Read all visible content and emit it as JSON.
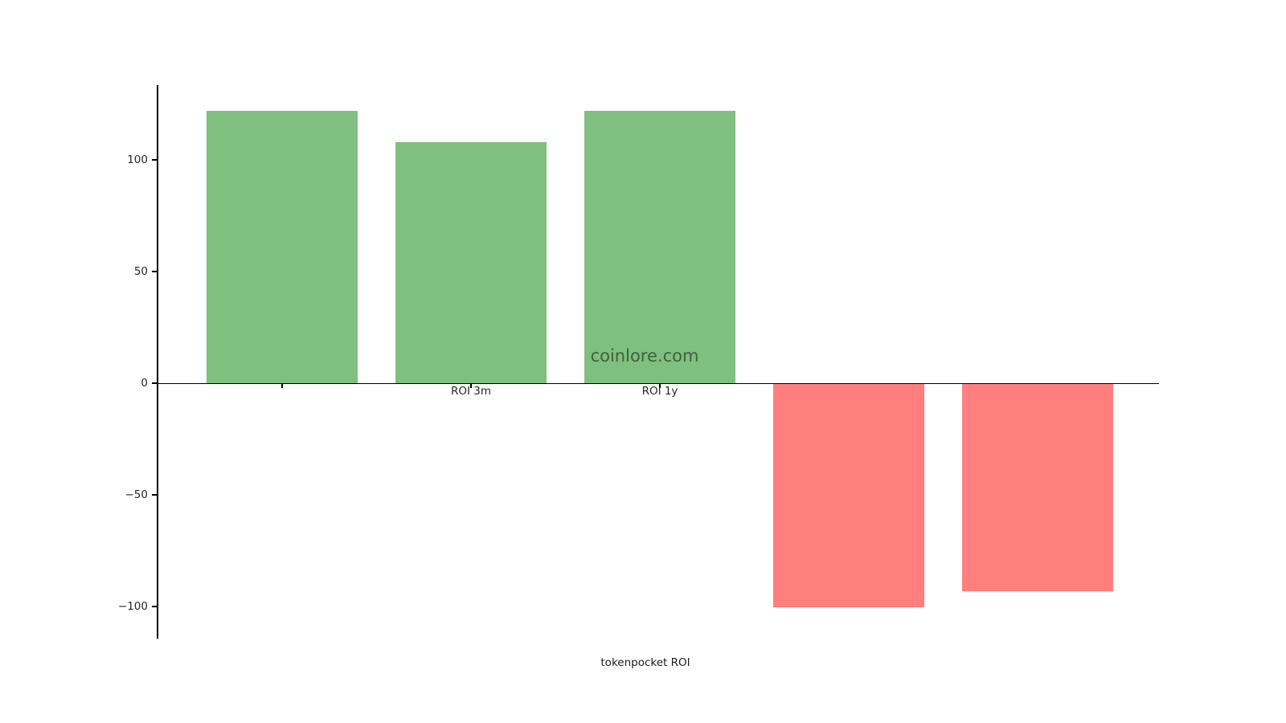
{
  "chart_data": {
    "type": "bar",
    "title": "",
    "categories": [
      "",
      "ROI 3m",
      "ROI 1y",
      "",
      ""
    ],
    "values": [
      122,
      108,
      122,
      -100,
      -93
    ],
    "xlabel": "tokenpocket ROI",
    "ylabel": "",
    "yticks": [
      100,
      50,
      0,
      -50,
      -100
    ],
    "ylim": [
      -115,
      133
    ],
    "grid": false,
    "legend": false,
    "positive_color": "#7fbf7f",
    "negative_color": "#ff7f7f",
    "axis_color": "#000000",
    "tick_label_color": "#262626",
    "watermark": "coinlore.com"
  }
}
